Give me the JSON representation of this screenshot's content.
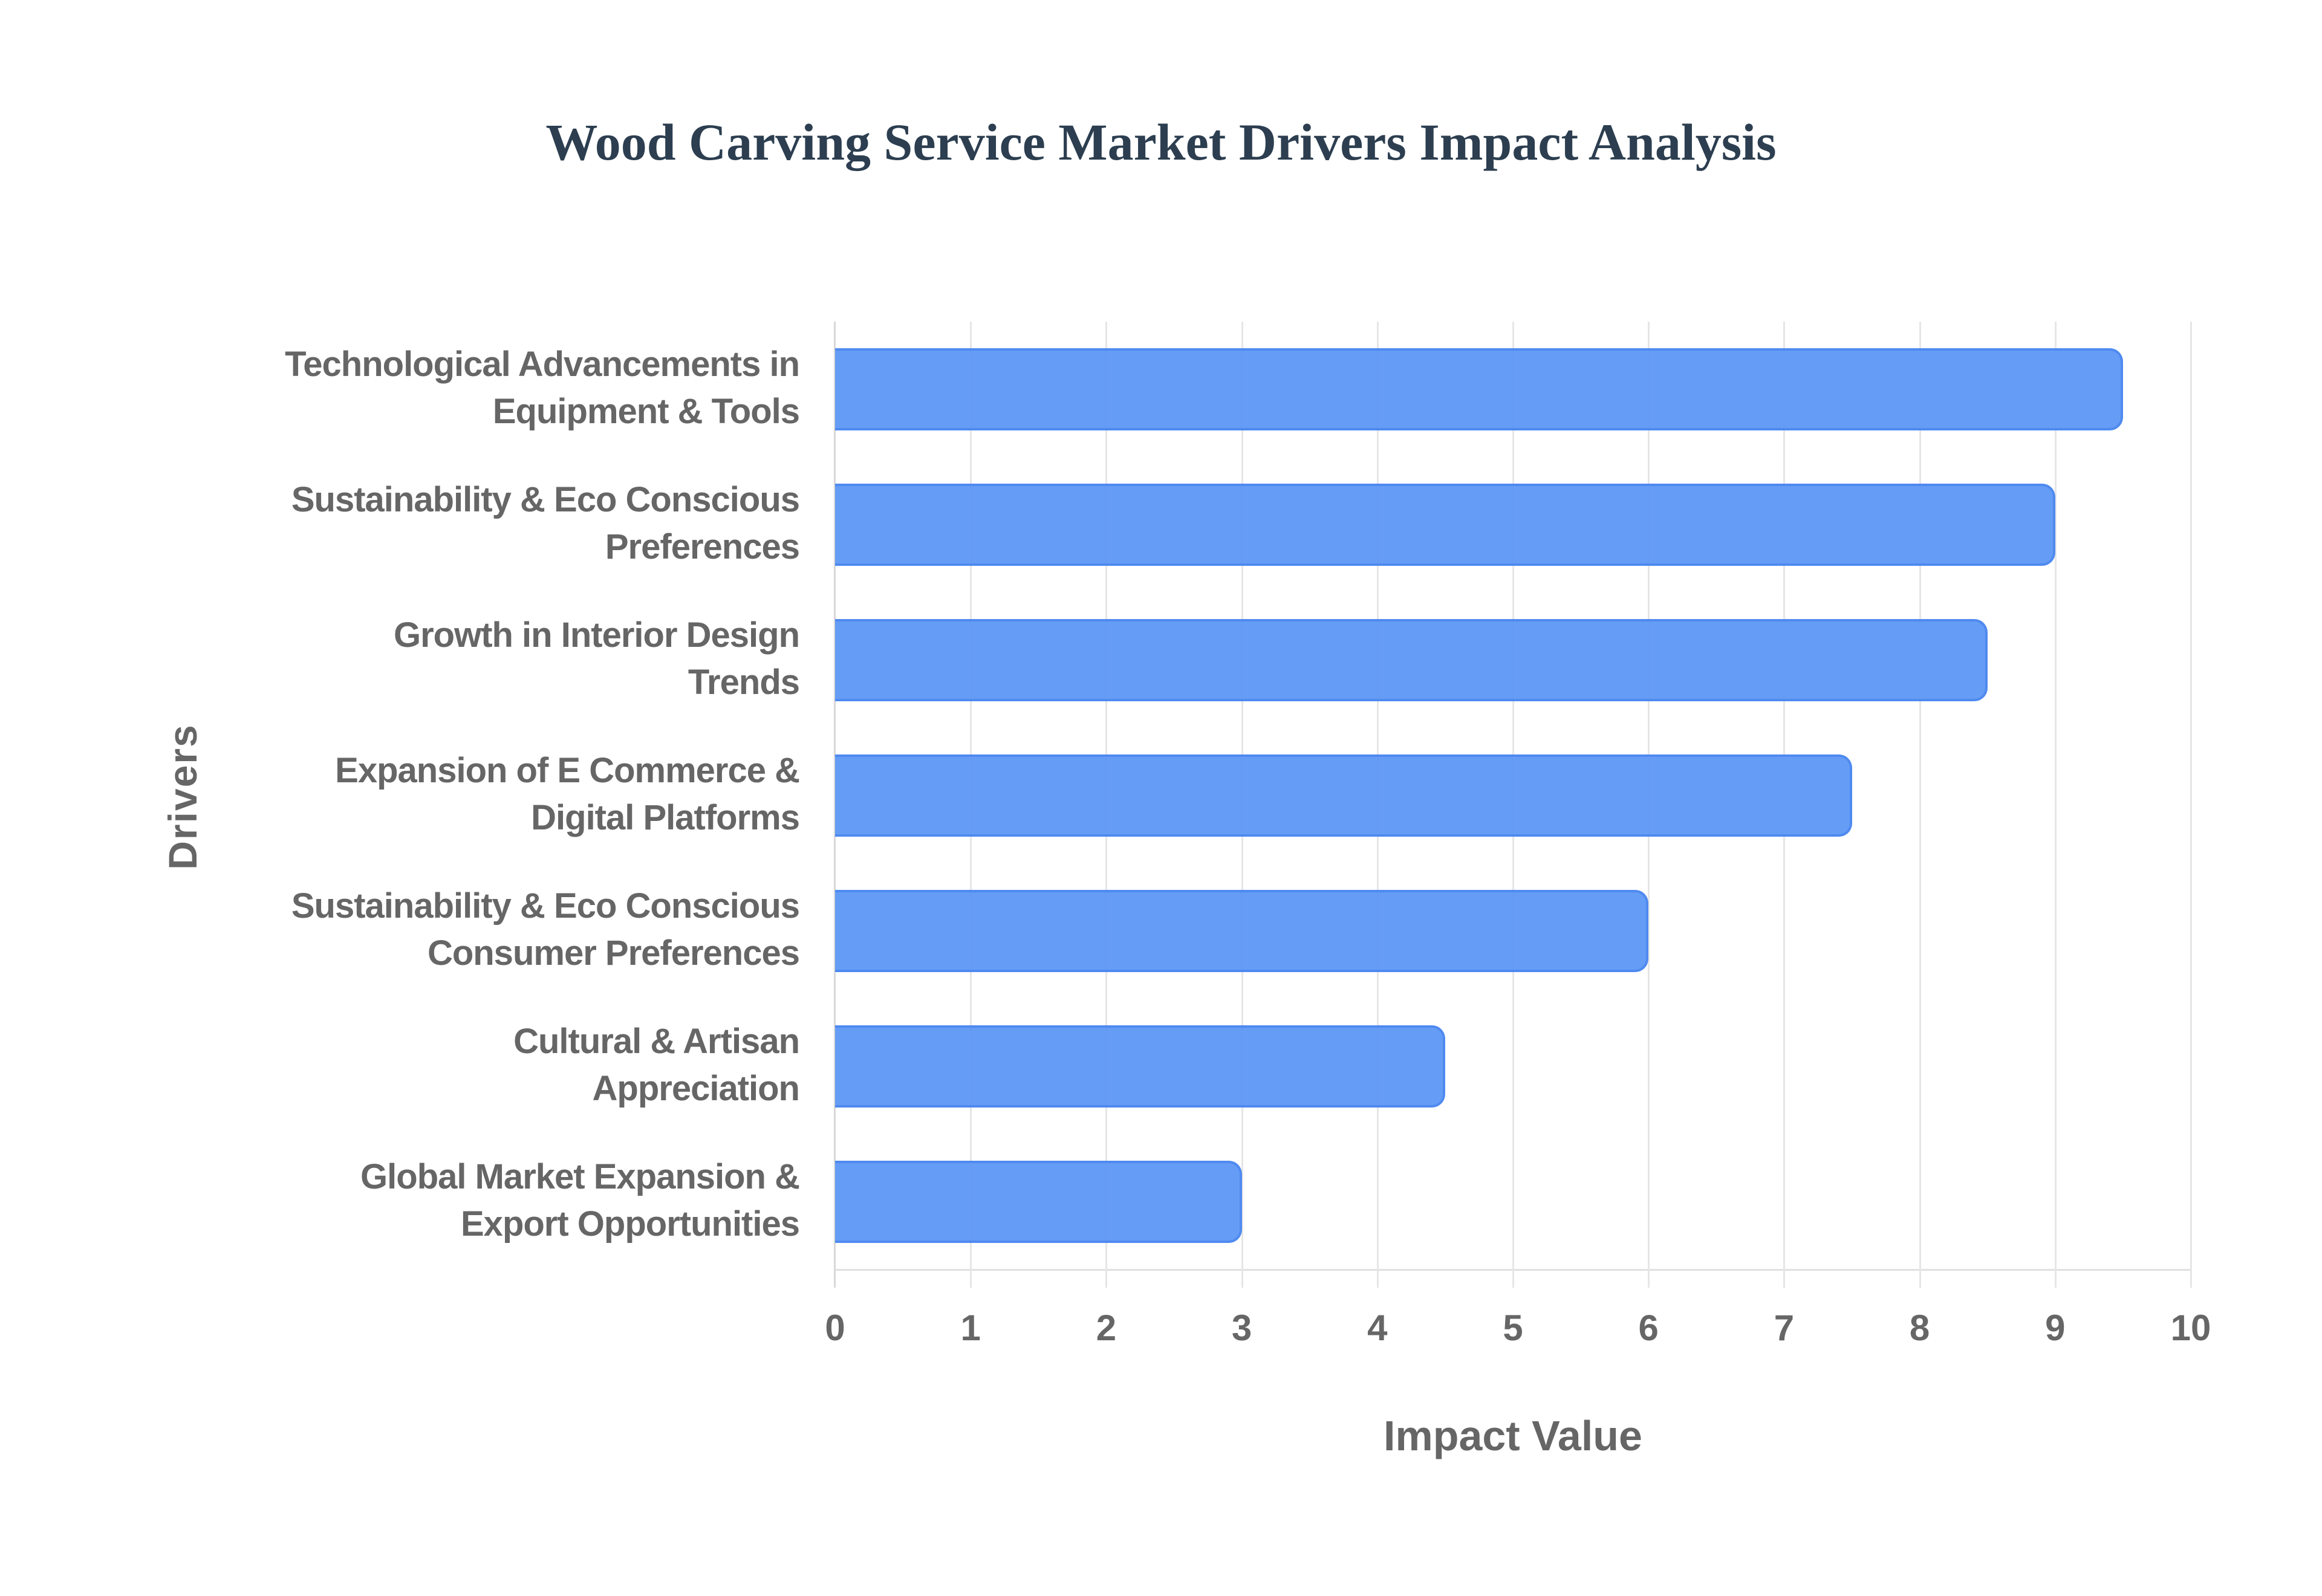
{
  "title": "Wood Carving Service Market Drivers Impact Analysis",
  "x_axis": {
    "title": "Impact Value",
    "ticks": [
      "0",
      "1",
      "2",
      "3",
      "4",
      "5",
      "6",
      "7",
      "8",
      "9",
      "10"
    ]
  },
  "y_axis": {
    "title": "Drivers"
  },
  "colors": {
    "bar_fill": "#6199f5",
    "bar_border": "#4a87f0",
    "title": "#2c3e50",
    "axis_text": "#666666",
    "grid": "#e6e6e6"
  },
  "categories": [
    {
      "line1": "Technological Advancements in",
      "line2": "Equipment & Tools",
      "value": 9.5
    },
    {
      "line1": "Sustainability & Eco Conscious",
      "line2": "Preferences",
      "value": 9.0
    },
    {
      "line1": "Growth in Interior Design",
      "line2": "Trends",
      "value": 8.5
    },
    {
      "line1": "Expansion of E Commerce &",
      "line2": "Digital Platforms",
      "value": 7.5
    },
    {
      "line1": "Sustainability & Eco Conscious",
      "line2": "Consumer Preferences",
      "value": 6.0
    },
    {
      "line1": "Cultural & Artisan",
      "line2": "Appreciation",
      "value": 4.5
    },
    {
      "line1": "Global Market Expansion &",
      "line2": "Export Opportunities",
      "value": 3.0
    }
  ],
  "chart_data": {
    "type": "bar",
    "orientation": "horizontal",
    "title": "Wood Carving Service Market Drivers Impact Analysis",
    "categories": [
      "Technological Advancements in Equipment & Tools",
      "Sustainability & Eco Conscious Preferences",
      "Growth in Interior Design Trends",
      "Expansion of E Commerce & Digital Platforms",
      "Sustainability & Eco Conscious Consumer Preferences",
      "Cultural & Artisan Appreciation",
      "Global Market Expansion & Export Opportunities"
    ],
    "values": [
      9.5,
      9.0,
      8.5,
      7.5,
      6.0,
      4.5,
      3.0
    ],
    "xlabel": "Impact Value",
    "ylabel": "Drivers",
    "xlim": [
      0,
      10
    ],
    "x_ticks": [
      0,
      1,
      2,
      3,
      4,
      5,
      6,
      7,
      8,
      9,
      10
    ],
    "grid": true,
    "legend": null
  }
}
